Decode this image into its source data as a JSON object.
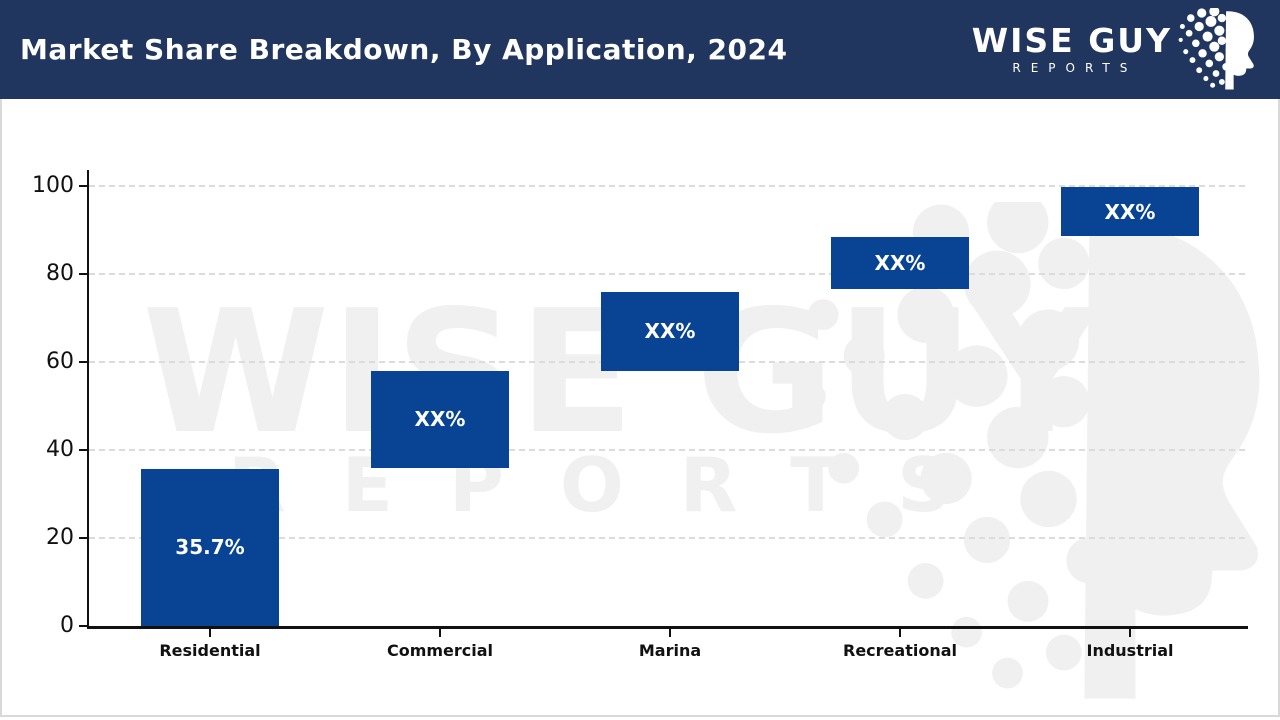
{
  "header": {
    "title": "Market Share Breakdown, By Application, 2024",
    "logo": {
      "primary": "WISE GUY",
      "secondary": "REPORTS"
    }
  },
  "watermark": {
    "primary": "WISE GUY",
    "secondary": "REPORTS"
  },
  "chart_data": {
    "type": "bar",
    "variant": "floating-waterfall",
    "title": "Market Share Breakdown, By Application, 2024",
    "xlabel": "",
    "ylabel": "",
    "ylim": [
      0,
      105
    ],
    "yticks": [
      0,
      20,
      40,
      60,
      80,
      100
    ],
    "grid": "horizontal-dashed",
    "legend": "none",
    "categories": [
      "Residential",
      "Commercial",
      "Marina",
      "Recreational",
      "Industrial"
    ],
    "bars": [
      {
        "category": "Residential",
        "start": 0,
        "end": 35.7,
        "label": "35.7%"
      },
      {
        "category": "Commercial",
        "start": 35.9,
        "end": 58.0,
        "label": "XX%"
      },
      {
        "category": "Marina",
        "start": 58.0,
        "end": 76.0,
        "label": "XX%"
      },
      {
        "category": "Recreational",
        "start": 76.5,
        "end": 88.4,
        "label": "XX%"
      },
      {
        "category": "Industrial",
        "start": 88.6,
        "end": 99.8,
        "label": "XX%"
      }
    ],
    "colors": {
      "bar": "#084394",
      "bar_label": "#ffffff",
      "header_bg": "#21365f",
      "grid": "#dcdcdc",
      "axis": "#111111",
      "watermark": "#f0f0f0"
    }
  }
}
